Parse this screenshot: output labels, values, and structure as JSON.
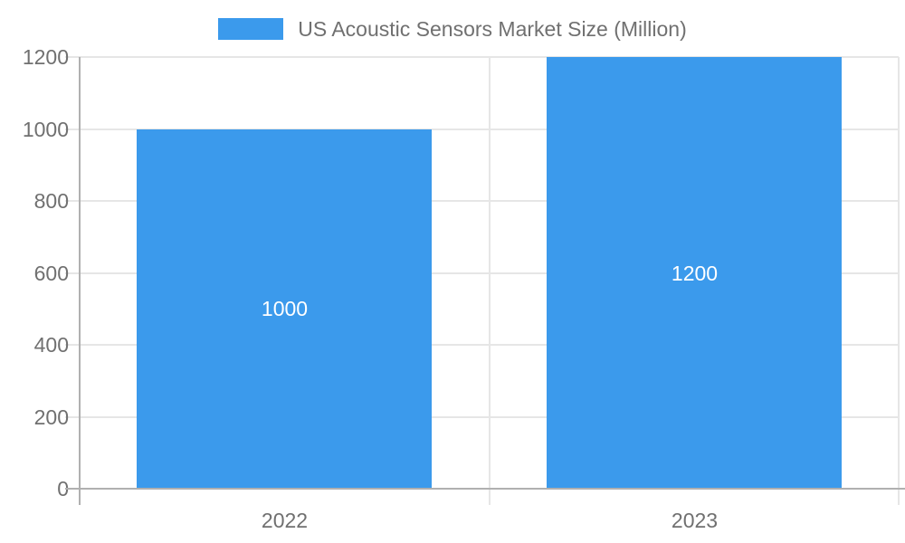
{
  "chart_data": {
    "type": "bar",
    "title": "US Acoustic Sensors Market Size (Million)",
    "categories": [
      "2022",
      "2023"
    ],
    "series": [
      {
        "name": "US Acoustic Sensors Market Size (Million)",
        "values": [
          1000,
          1200
        ]
      }
    ],
    "bar_labels": [
      "1000",
      "1200"
    ],
    "xlabel": "",
    "ylabel": "",
    "ylim": [
      0,
      1200
    ],
    "yticks": [
      0,
      200,
      400,
      600,
      800,
      1000,
      1200
    ],
    "grid": true,
    "legend_position": "top"
  },
  "legend": {
    "label": "US Acoustic Sensors Market Size (Million)"
  },
  "colors": {
    "bar": "#3b9aec",
    "axis": "#b0b0b0",
    "grid": "#e6e6e6",
    "text": "#707070",
    "bar_label": "#ffffff",
    "background": "#ffffff"
  }
}
